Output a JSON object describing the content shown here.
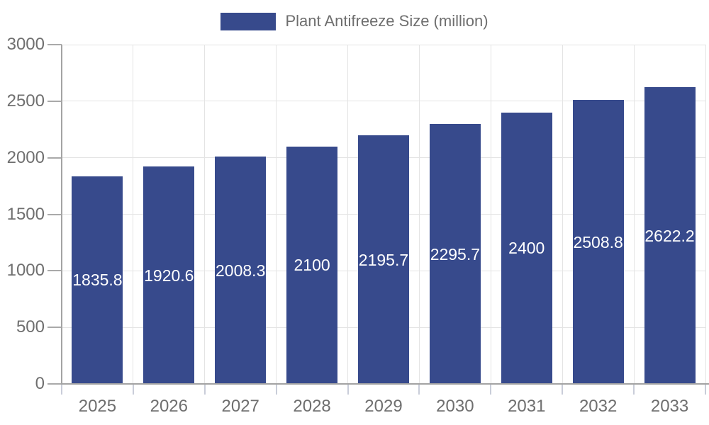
{
  "chart_data": {
    "type": "bar",
    "title": "Plant Antifreeze Size (million)",
    "series_name": "Plant Antifreeze Size (million)",
    "categories": [
      "2025",
      "2026",
      "2027",
      "2028",
      "2029",
      "2030",
      "2031",
      "2032",
      "2033"
    ],
    "values": [
      1835.8,
      1920.6,
      2008.3,
      2100,
      2195.7,
      2295.7,
      2400,
      2508.8,
      2622.2
    ],
    "xlabel": "",
    "ylabel": "",
    "ylim": [
      0,
      3000
    ],
    "yticks": [
      0,
      500,
      1000,
      1500,
      2000,
      2500,
      3000
    ],
    "grid": true,
    "legend_position": "top",
    "bar_color": "#374a8c",
    "bar_label_color": "#ffffff",
    "axis_text_color": "#6f6f6f",
    "gridline_color": "#e4e4e4",
    "axis_line_color": "#a3a3a3"
  }
}
